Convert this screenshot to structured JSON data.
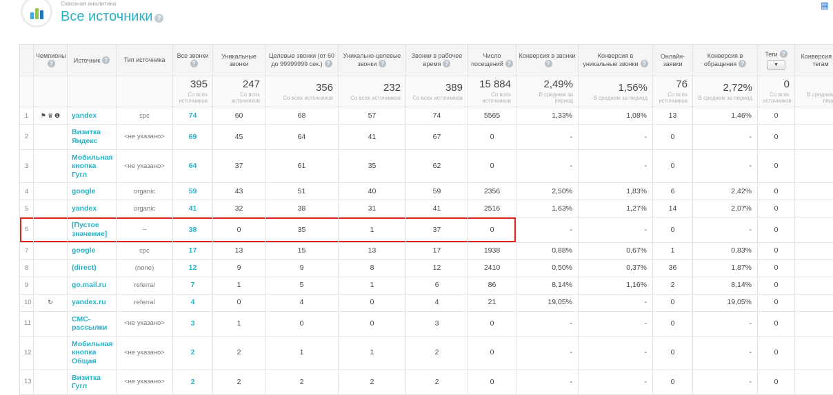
{
  "colors": {
    "accent": "#28b2c6",
    "red": "#e0241b"
  },
  "header": {
    "breadcrumb": "Сквозная аналитика",
    "title": "Все источники",
    "help_glyph": "?"
  },
  "toolbar": {
    "grid_icon_glyph": "▦"
  },
  "table": {
    "columns": [
      {
        "key": "num",
        "label": ""
      },
      {
        "key": "champions",
        "label": "Чемпионы",
        "help": true
      },
      {
        "key": "source",
        "label": "Источник",
        "help": true
      },
      {
        "key": "type",
        "label": "Тип источника"
      },
      {
        "key": "all-calls",
        "label": "Все звонки",
        "help": true
      },
      {
        "key": "unique-calls",
        "label": "Уникальные звонки"
      },
      {
        "key": "target-calls",
        "label": "Целевые звонки (от 60 до 99999999 сек.)",
        "help": true
      },
      {
        "key": "unique-target-calls",
        "label": "Уникально-целевые звонки",
        "help": true
      },
      {
        "key": "work-hours-calls",
        "label": "Звонки в рабочее время",
        "help": true
      },
      {
        "key": "visits",
        "label": "Число посещений",
        "help": true
      },
      {
        "key": "conv-calls",
        "label": "Конверсия в звонки",
        "help": true
      },
      {
        "key": "conv-unique-calls",
        "label": "Конверсия в уникальные звонки",
        "help": true
      },
      {
        "key": "online-leads",
        "label": "Онлайн-заявки"
      },
      {
        "key": "conv-leads",
        "label": "Конверсия в обращения",
        "help": true
      },
      {
        "key": "tags",
        "label": "Теги",
        "help": true,
        "dropdown": true
      },
      {
        "key": "conv-tags",
        "label": "Конверсия по тегам"
      }
    ],
    "tags_dropdown_glyph": "▼",
    "summary": [
      {
        "value": "",
        "sub": ""
      },
      {
        "value": "",
        "sub": ""
      },
      {
        "value": "",
        "sub": ""
      },
      {
        "value": "",
        "sub": ""
      },
      {
        "value": "395",
        "sub": "Со всех источников"
      },
      {
        "value": "247",
        "sub": "Со всех источников"
      },
      {
        "value": "356",
        "sub": "Со всех источников"
      },
      {
        "value": "232",
        "sub": "Со всех источников"
      },
      {
        "value": "389",
        "sub": "Со всех источников"
      },
      {
        "value": "15 884",
        "sub": "Со всех источников"
      },
      {
        "value": "2,49%",
        "sub": "В среднем за период"
      },
      {
        "value": "1,56%",
        "sub": "В среднем за период"
      },
      {
        "value": "76",
        "sub": "Со всех источников"
      },
      {
        "value": "2,72%",
        "sub": "В среднем за период"
      },
      {
        "value": "0",
        "sub": "Со всех источников"
      },
      {
        "value": "-",
        "sub": "В среднем за период"
      }
    ],
    "rows": [
      {
        "num": "1",
        "icons": [
          {
            "glyph": "⚑",
            "name": "champion-flag-badge-icon"
          },
          {
            "glyph": "♛",
            "name": "champion-crown-badge-icon"
          },
          {
            "glyph": "❶",
            "name": "champion-medal-badge-icon"
          }
        ],
        "source": "yandex",
        "type": "cpc",
        "values": [
          "74",
          "60",
          "68",
          "57",
          "74",
          "5565",
          "1,33%",
          "1,08%",
          "13",
          "1,46%",
          "0",
          "-"
        ]
      },
      {
        "num": "2",
        "icons": [],
        "source": "Визитка Яндекс",
        "type": "<не указано>",
        "values": [
          "69",
          "45",
          "64",
          "41",
          "67",
          "0",
          "-",
          "-",
          "0",
          "-",
          "0",
          "-"
        ]
      },
      {
        "num": "3",
        "icons": [],
        "source": "Мобильная кнопка Гугл",
        "type": "<не указано>",
        "values": [
          "64",
          "37",
          "61",
          "35",
          "62",
          "0",
          "-",
          "-",
          "0",
          "-",
          "0",
          "-"
        ]
      },
      {
        "num": "4",
        "icons": [],
        "source": "google",
        "type": "organic",
        "values": [
          "59",
          "43",
          "51",
          "40",
          "59",
          "2356",
          "2,50%",
          "1,83%",
          "6",
          "2,42%",
          "0",
          "-"
        ]
      },
      {
        "num": "5",
        "icons": [],
        "source": "yandex",
        "type": "organic",
        "values": [
          "41",
          "32",
          "38",
          "31",
          "41",
          "2516",
          "1,63%",
          "1,27%",
          "14",
          "2,07%",
          "0",
          "-"
        ]
      },
      {
        "num": "6",
        "icons": [],
        "source": "[Пустое значение]",
        "type": "--",
        "highlighted": true,
        "values": [
          "38",
          "0",
          "35",
          "1",
          "37",
          "0",
          "-",
          "-",
          "0",
          "-",
          "0",
          "-"
        ]
      },
      {
        "num": "7",
        "icons": [],
        "source": "google",
        "type": "cpc",
        "values": [
          "17",
          "13",
          "15",
          "13",
          "17",
          "1938",
          "0,88%",
          "0,67%",
          "1",
          "0,83%",
          "0",
          "-"
        ]
      },
      {
        "num": "8",
        "icons": [],
        "source": "(direct)",
        "type": "(none)",
        "values": [
          "12",
          "9",
          "9",
          "8",
          "12",
          "2410",
          "0,50%",
          "0,37%",
          "36",
          "1,87%",
          "0",
          "-"
        ]
      },
      {
        "num": "9",
        "icons": [],
        "source": "go.mail.ru",
        "type": "referral",
        "values": [
          "7",
          "1",
          "5",
          "1",
          "6",
          "86",
          "8,14%",
          "1,16%",
          "2",
          "8,14%",
          "0",
          "-"
        ]
      },
      {
        "num": "10",
        "icons": [
          {
            "glyph": "↻",
            "name": "sync-icon",
            "interactable": true
          }
        ],
        "source": "yandex.ru",
        "type": "referral",
        "values": [
          "4",
          "0",
          "4",
          "0",
          "4",
          "21",
          "19,05%",
          "-",
          "0",
          "19,05%",
          "0",
          "-"
        ]
      },
      {
        "num": "11",
        "icons": [],
        "source": "СМС-рассылки",
        "type": "<не указано>",
        "values": [
          "3",
          "1",
          "0",
          "0",
          "3",
          "0",
          "-",
          "-",
          "0",
          "-",
          "0",
          "-"
        ]
      },
      {
        "num": "12",
        "icons": [],
        "source": "Мобильная кнопка Общая",
        "type": "<не указано>",
        "values": [
          "2",
          "2",
          "1",
          "1",
          "2",
          "0",
          "-",
          "-",
          "0",
          "-",
          "0",
          "-"
        ]
      },
      {
        "num": "13",
        "icons": [],
        "source": "Визитка Гугл",
        "type": "<не указано>",
        "values": [
          "2",
          "2",
          "2",
          "2",
          "2",
          "0",
          "-",
          "-",
          "0",
          "-",
          "0",
          "-"
        ]
      }
    ]
  }
}
